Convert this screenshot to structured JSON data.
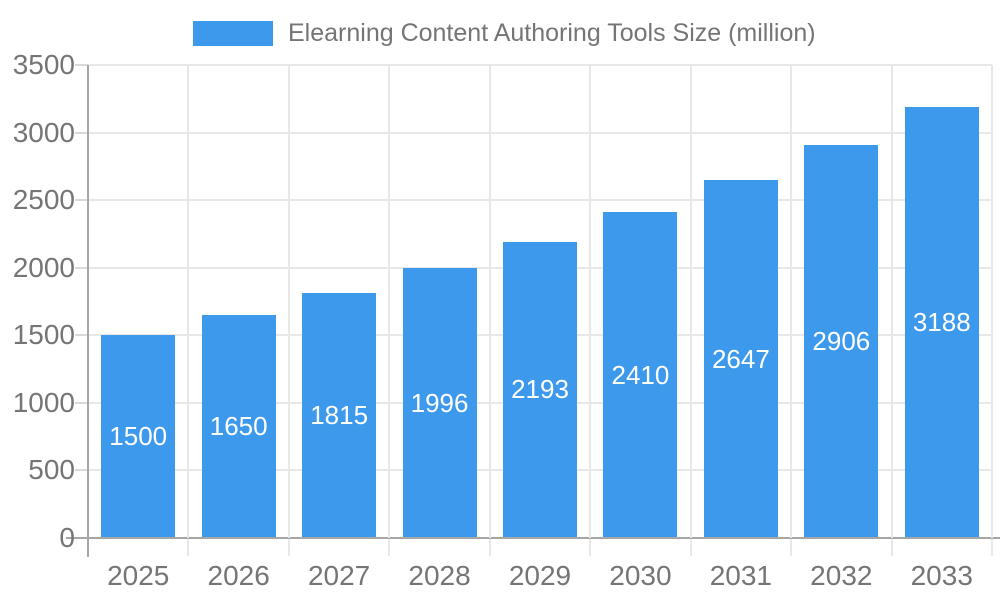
{
  "legend": {
    "series_label": "Elearning Content Authoring Tools Size (million)",
    "swatch_color": "#3C99EC"
  },
  "chart_data": {
    "type": "bar",
    "title": "Elearning Content Authoring Tools Size (million)",
    "categories": [
      "2025",
      "2026",
      "2027",
      "2028",
      "2029",
      "2030",
      "2031",
      "2032",
      "2033"
    ],
    "series": [
      {
        "name": "Elearning Content Authoring Tools Size (million)",
        "values": [
          1500,
          1650,
          1815,
          1996,
          2193,
          2410,
          2647,
          2906,
          3188
        ]
      }
    ],
    "value_labels": [
      "1500",
      "1650",
      "1815",
      "1996",
      "2193",
      "2410",
      "2647",
      "2906",
      "3188"
    ],
    "xlabel": "",
    "ylabel": "",
    "ylim": [
      0,
      3500
    ],
    "ytick_step": 500,
    "yticks": [
      0,
      500,
      1000,
      1500,
      2000,
      2500,
      3000,
      3500
    ],
    "grid": "on",
    "legend_position": "top",
    "value_labels_position": "inside-center",
    "colors": {
      "bar": "#3C99EC",
      "bar_value_label": "#FFFFFF",
      "axis_text": "#757575",
      "legend_text": "#757575",
      "gridline": "#E8E8E8",
      "left_tick": "#D9D9D9",
      "axis_line": "#A6A6A6",
      "background": "#FFFFFF"
    }
  }
}
